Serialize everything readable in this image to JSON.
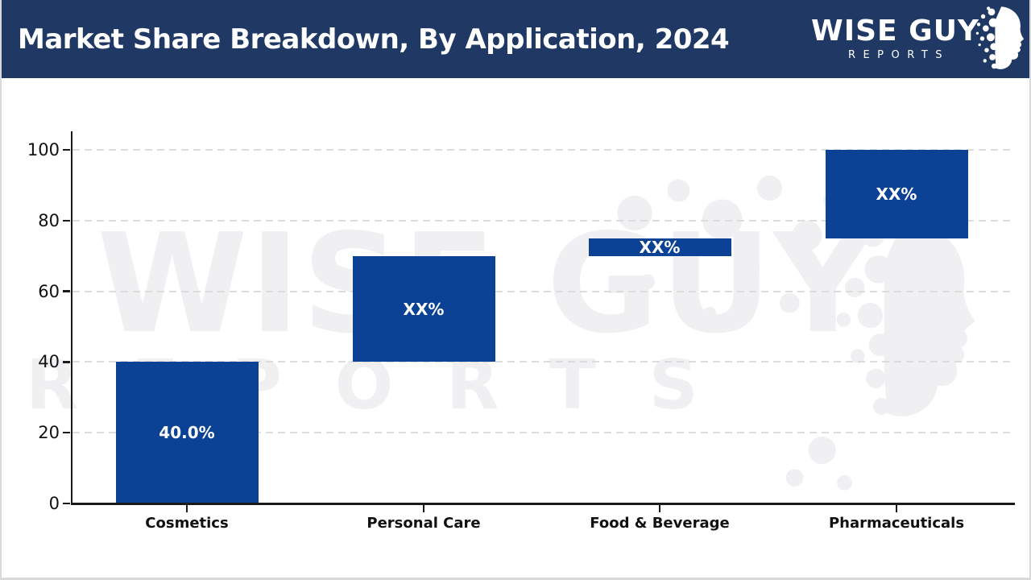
{
  "header": {
    "title": "Market Share Breakdown, By Application, 2024",
    "logo": {
      "line1": "WISE GUY",
      "line2": "REPORTS"
    }
  },
  "watermark": {
    "line1": "WISE GUY",
    "line2": "REPORTS"
  },
  "colors": {
    "header_bg": "#1f3864",
    "bar": "#0b4295",
    "axis": "#1a1a1a",
    "grid": "#dcdcdc",
    "watermark": "#f0f0f3",
    "frame": "#d9d9d9",
    "bar_label": "#ffffff"
  },
  "chart_data": {
    "type": "bar",
    "variant": "waterfall",
    "title": "Market Share Breakdown, By Application, 2024",
    "xlabel": "",
    "ylabel": "",
    "categories": [
      "Cosmetics",
      "Personal Care",
      "Food & Beverage",
      "Pharmaceuticals"
    ],
    "segments": [
      {
        "category": "Cosmetics",
        "start": 0,
        "end": 40,
        "value": 40,
        "data_label": "40.0%"
      },
      {
        "category": "Personal Care",
        "start": 40,
        "end": 70,
        "value": 30,
        "data_label": "XX%"
      },
      {
        "category": "Food & Beverage",
        "start": 70,
        "end": 75,
        "value": 5,
        "data_label": "XX%"
      },
      {
        "category": "Pharmaceuticals",
        "start": 75,
        "end": 100,
        "value": 25,
        "data_label": "XX%"
      }
    ],
    "yticks": [
      0,
      20,
      40,
      60,
      80,
      100
    ],
    "ylim": [
      0,
      105
    ],
    "grid": "horizontal-dashed",
    "legend": "none",
    "bar_color": "#0b4295"
  }
}
